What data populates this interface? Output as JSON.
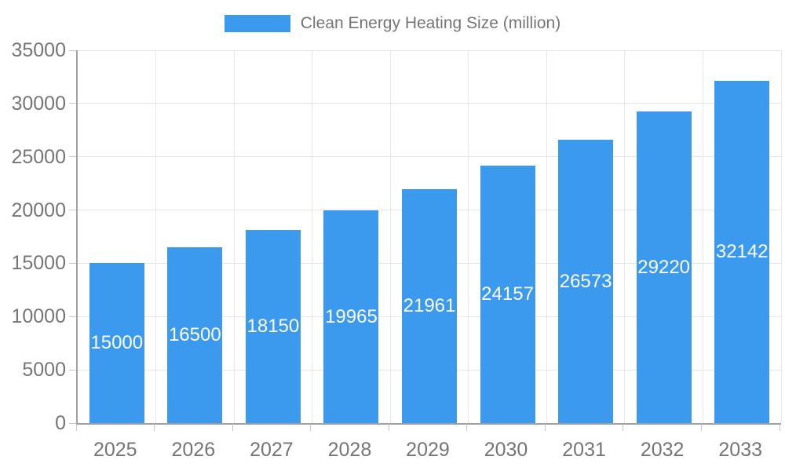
{
  "legend": {
    "label": "Clean Energy Heating Size (million)"
  },
  "chart_data": {
    "type": "bar",
    "title": "",
    "xlabel": "",
    "ylabel": "",
    "categories": [
      "2025",
      "2026",
      "2027",
      "2028",
      "2029",
      "2030",
      "2031",
      "2032",
      "2033"
    ],
    "series": [
      {
        "name": "Clean Energy Heating Size (million)",
        "values": [
          15000,
          16500,
          18150,
          19965,
          21961,
          24157,
          26573,
          29220,
          32142
        ]
      }
    ],
    "bar_labels": [
      "15000",
      "16500",
      "18150",
      "19965",
      "21961",
      "24157",
      "26573",
      "29220",
      "32142"
    ],
    "ylim": [
      0,
      35000
    ],
    "yticks": [
      0,
      5000,
      10000,
      15000,
      20000,
      25000,
      30000,
      35000
    ],
    "grid": true,
    "legend_position": "top",
    "colors": {
      "bar": "#3B99EE",
      "bar_label": "#FFFFFF",
      "axis_line": "#A0A0A0",
      "grid_line": "#E6E6E6",
      "tick_line": "#C6C6C6",
      "axis_label": "#757575",
      "legend_text": "#757575",
      "background": "#FFFFFF"
    }
  }
}
